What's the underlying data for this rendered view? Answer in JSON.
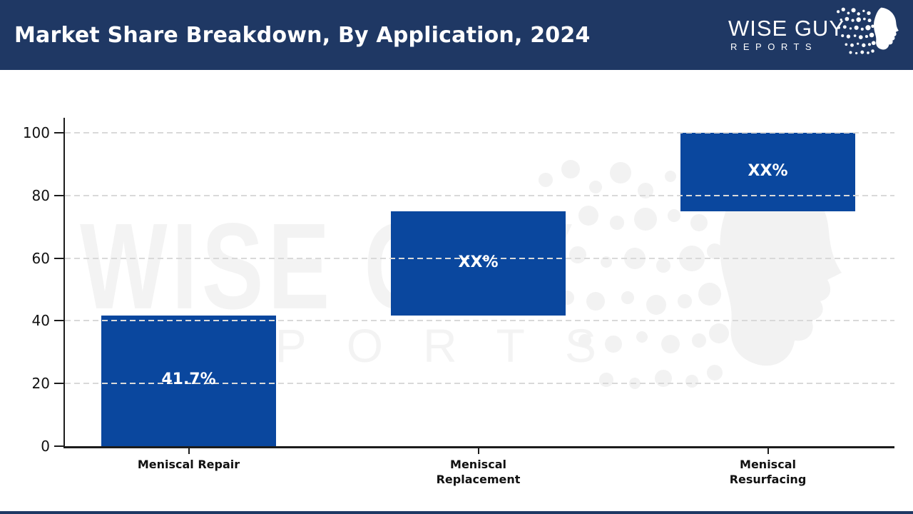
{
  "header": {
    "title": "Market Share Breakdown, By Application, 2024",
    "logo": {
      "name": "WISE GUY",
      "sub": "REPORTS"
    }
  },
  "watermark": {
    "name": "WISE GUY",
    "sub": "REPORTS"
  },
  "colors": {
    "header_navy": "#1f3864",
    "bar_blue": "#0a479e",
    "bar_label_white": "#ffffff",
    "grid_gray": "#d9d9d9",
    "axis_black": "#1c1c1c",
    "watermark_gray": "#f3f3f3"
  },
  "chart_data": {
    "type": "bar",
    "subtype": "floating-segment-waterfall",
    "title": "Market Share Breakdown, By Application, 2024",
    "categories": [
      "Meniscal Repair",
      "Meniscal Replacement",
      "Meniscal Resurfacing"
    ],
    "category_lines": [
      [
        "Meniscal Repair"
      ],
      [
        "Meniscal",
        "Replacement"
      ],
      [
        "Meniscal",
        "Resurfacing"
      ]
    ],
    "bars": [
      {
        "category": "Meniscal Repair",
        "start": 0,
        "end": 41.7,
        "label": "41.7%"
      },
      {
        "category": "Meniscal Replacement",
        "start": 41.7,
        "end": 75,
        "label": "XX%"
      },
      {
        "category": "Meniscal Resurfacing",
        "start": 75,
        "end": 100,
        "label": "XX%"
      }
    ],
    "bar_color": "#0a479e",
    "label_color": "#ffffff",
    "xlabel": "",
    "ylabel": "",
    "yticks": [
      0,
      20,
      40,
      60,
      80,
      100
    ],
    "ylim": [
      0,
      100
    ],
    "grid": "horizontal-dashed-above-bars",
    "legend": null
  }
}
